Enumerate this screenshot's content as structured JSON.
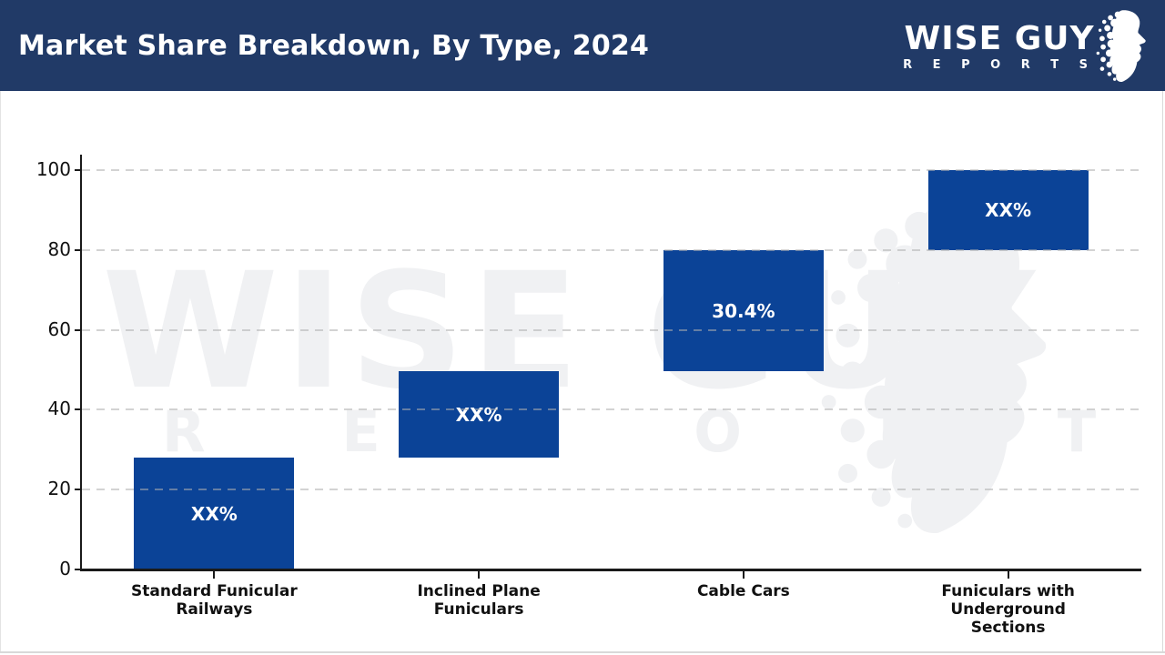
{
  "header": {
    "title": "Market Share Breakdown, By Type, 2024",
    "logo": {
      "name": "WISE GUY",
      "sub": "R E P O R T S"
    }
  },
  "watermark": {
    "big": "WISE GUY",
    "sub": "R E P O R T S"
  },
  "chart_data": {
    "type": "bar",
    "subtype": "waterfall",
    "title": "Market Share Breakdown, By Type, 2024",
    "categories": [
      "Standard Funicular\nRailways",
      "Inclined Plane\nFuniculars",
      "Cable Cars",
      "Funiculars with\nUnderground\nSections"
    ],
    "series": [
      {
        "name": "Market share (%)",
        "segments": [
          {
            "category": "Standard Funicular Railways",
            "start": 0,
            "end": 28,
            "label": "XX%"
          },
          {
            "category": "Inclined Plane Funiculars",
            "start": 28,
            "end": 49.6,
            "label": "XX%"
          },
          {
            "category": "Cable Cars",
            "start": 49.6,
            "end": 80,
            "label": "30.4%"
          },
          {
            "category": "Funiculars with Underground Sections",
            "start": 80,
            "end": 100,
            "label": "XX%"
          }
        ]
      }
    ],
    "yticks": [
      0,
      20,
      40,
      60,
      80,
      100
    ],
    "ylim": [
      0,
      104
    ],
    "grid": "horizontal-dashed",
    "legend": "none",
    "bar_color": "#0b4397",
    "bar_label_color": "#ffffff",
    "axis_color": "#1a1a1a",
    "gridline_color": "#d9d9d9",
    "header_color": "#213a67"
  }
}
